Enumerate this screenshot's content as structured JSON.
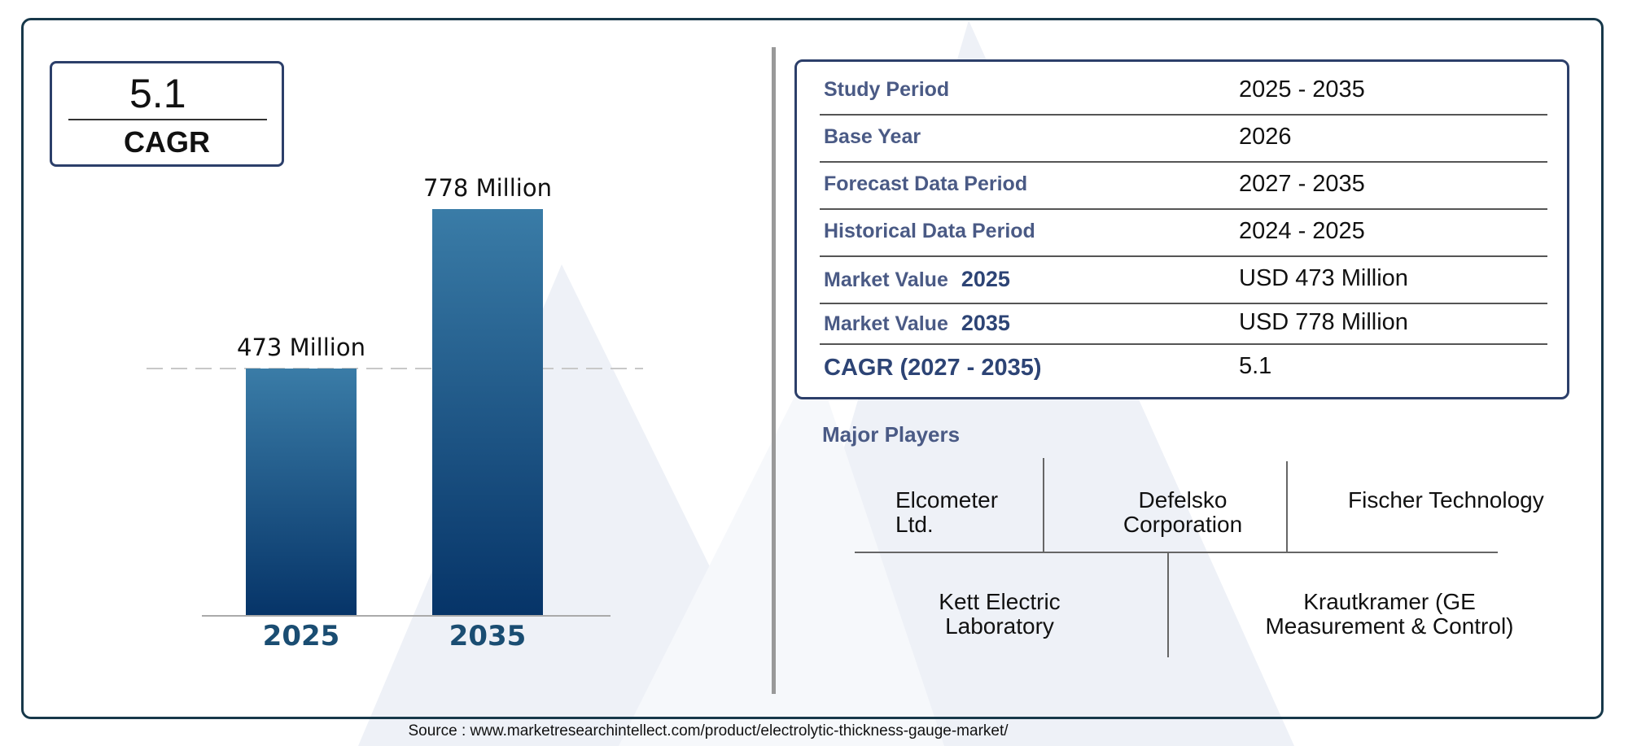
{
  "cagr_badge": {
    "value": "5.1",
    "label": "CAGR"
  },
  "chart_data": {
    "type": "bar",
    "categories": [
      "2025",
      "2035"
    ],
    "values": [
      473,
      778
    ],
    "value_labels": [
      "473 Million",
      "778 Million"
    ],
    "title": "",
    "xlabel": "",
    "ylabel": "",
    "ylim": [
      0,
      778
    ],
    "grid": false,
    "reference_line": {
      "value": 473,
      "style": "dashed"
    },
    "colors": {
      "bar_top": "#3a7ca7",
      "bar_bottom": "#063468"
    }
  },
  "info_table": [
    {
      "label": "Study Period",
      "value": "2025 - 2035"
    },
    {
      "label": "Base Year",
      "value": "2026"
    },
    {
      "label": "Forecast Data Period",
      "value": "2027 - 2035"
    },
    {
      "label": "Historical Data Period",
      "value": "2024 - 2025"
    },
    {
      "label": "Market Value",
      "year": "2025",
      "value": "USD 473 Million"
    },
    {
      "label": "Market Value",
      "year": "2035",
      "value": "USD 778 Million"
    },
    {
      "label": "CAGR (2027 - 2035)",
      "value": "5.1"
    }
  ],
  "players": {
    "title": "Major Players",
    "items": [
      "Elcometer Ltd.",
      "Defelsko Corporation",
      "Fischer Technology",
      "Kett Electric Laboratory",
      "Krautkramer (GE Measurement & Control)"
    ]
  },
  "source": "Source : www.marketresearchintellect.com/product/electrolytic-thickness-gauge-market/",
  "colors": {
    "accent": "#2c3f6a",
    "label": "#4a5a85",
    "frame": "#17384a",
    "tick": "#1a4d72"
  }
}
